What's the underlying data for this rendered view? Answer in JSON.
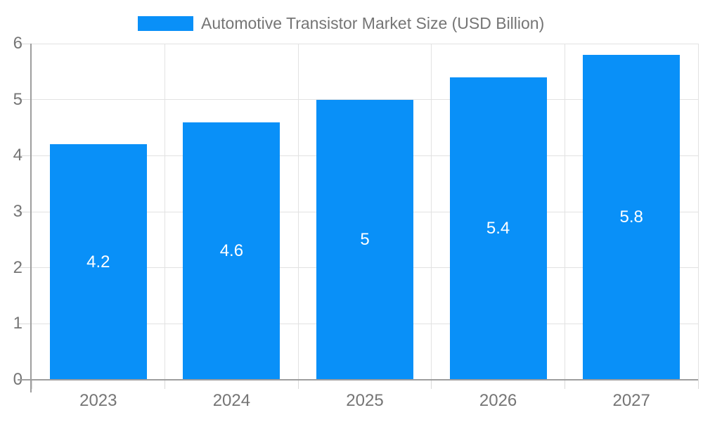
{
  "legend": {
    "label": "Automotive Transistor Market Size (USD Billion)"
  },
  "chart_data": {
    "type": "bar",
    "title": "Automotive Transistor Market Size (USD Billion)",
    "categories": [
      "2023",
      "2024",
      "2025",
      "2026",
      "2027"
    ],
    "values": [
      4.2,
      4.6,
      5,
      5.4,
      5.8
    ],
    "data_labels": [
      "4.2",
      "4.6",
      "5",
      "5.4",
      "5.8"
    ],
    "series": [
      {
        "name": "Automotive Transistor Market Size (USD Billion)",
        "values": [
          4.2,
          4.6,
          5,
          5.4,
          5.8
        ]
      }
    ],
    "xlabel": "",
    "ylabel": "",
    "ylim": [
      0,
      6
    ],
    "y_ticks": [
      0,
      1,
      2,
      3,
      4,
      5,
      6
    ],
    "y_tick_labels": [
      "0",
      "1",
      "2",
      "3",
      "4",
      "5",
      "6"
    ],
    "grid": true,
    "legend_position": "top"
  },
  "colors": {
    "bar": "#0990f8",
    "axis": "#9e9e9e",
    "gridline": "#e2e2e2",
    "tick": "#d9d9d9",
    "text": "#757575",
    "data_label": "#ffffff",
    "background": "#ffffff"
  }
}
